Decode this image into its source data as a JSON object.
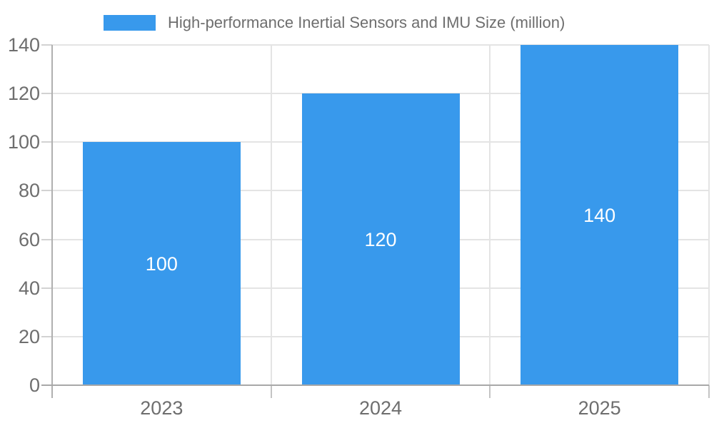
{
  "chart_data": {
    "type": "bar",
    "title": "",
    "legend": {
      "label": "High-performance Inertial Sensors and IMU Size (million)",
      "position": "top"
    },
    "categories": [
      "2023",
      "2024",
      "2025"
    ],
    "series": [
      {
        "name": "High-performance Inertial Sensors and IMU Size (million)",
        "values": [
          100,
          120,
          140
        ]
      }
    ],
    "data_labels": [
      "100",
      "120",
      "140"
    ],
    "xlabel": "",
    "ylabel": "",
    "ylim": [
      0,
      140
    ],
    "yticks": [
      0,
      20,
      40,
      60,
      80,
      100,
      120,
      140
    ],
    "grid": {
      "horizontal": true,
      "vertical": true
    },
    "colors": {
      "bar": "#3899ec",
      "grid": "#e4e4e4",
      "axis": "#b0b0b0",
      "baseline": "#a8a8a8",
      "tick": "#c4c4c4",
      "stub": "#d2d2d2",
      "label_text": "#6e6e6e",
      "bar_label_text": "#ffffff",
      "background": "#ffffff"
    }
  }
}
